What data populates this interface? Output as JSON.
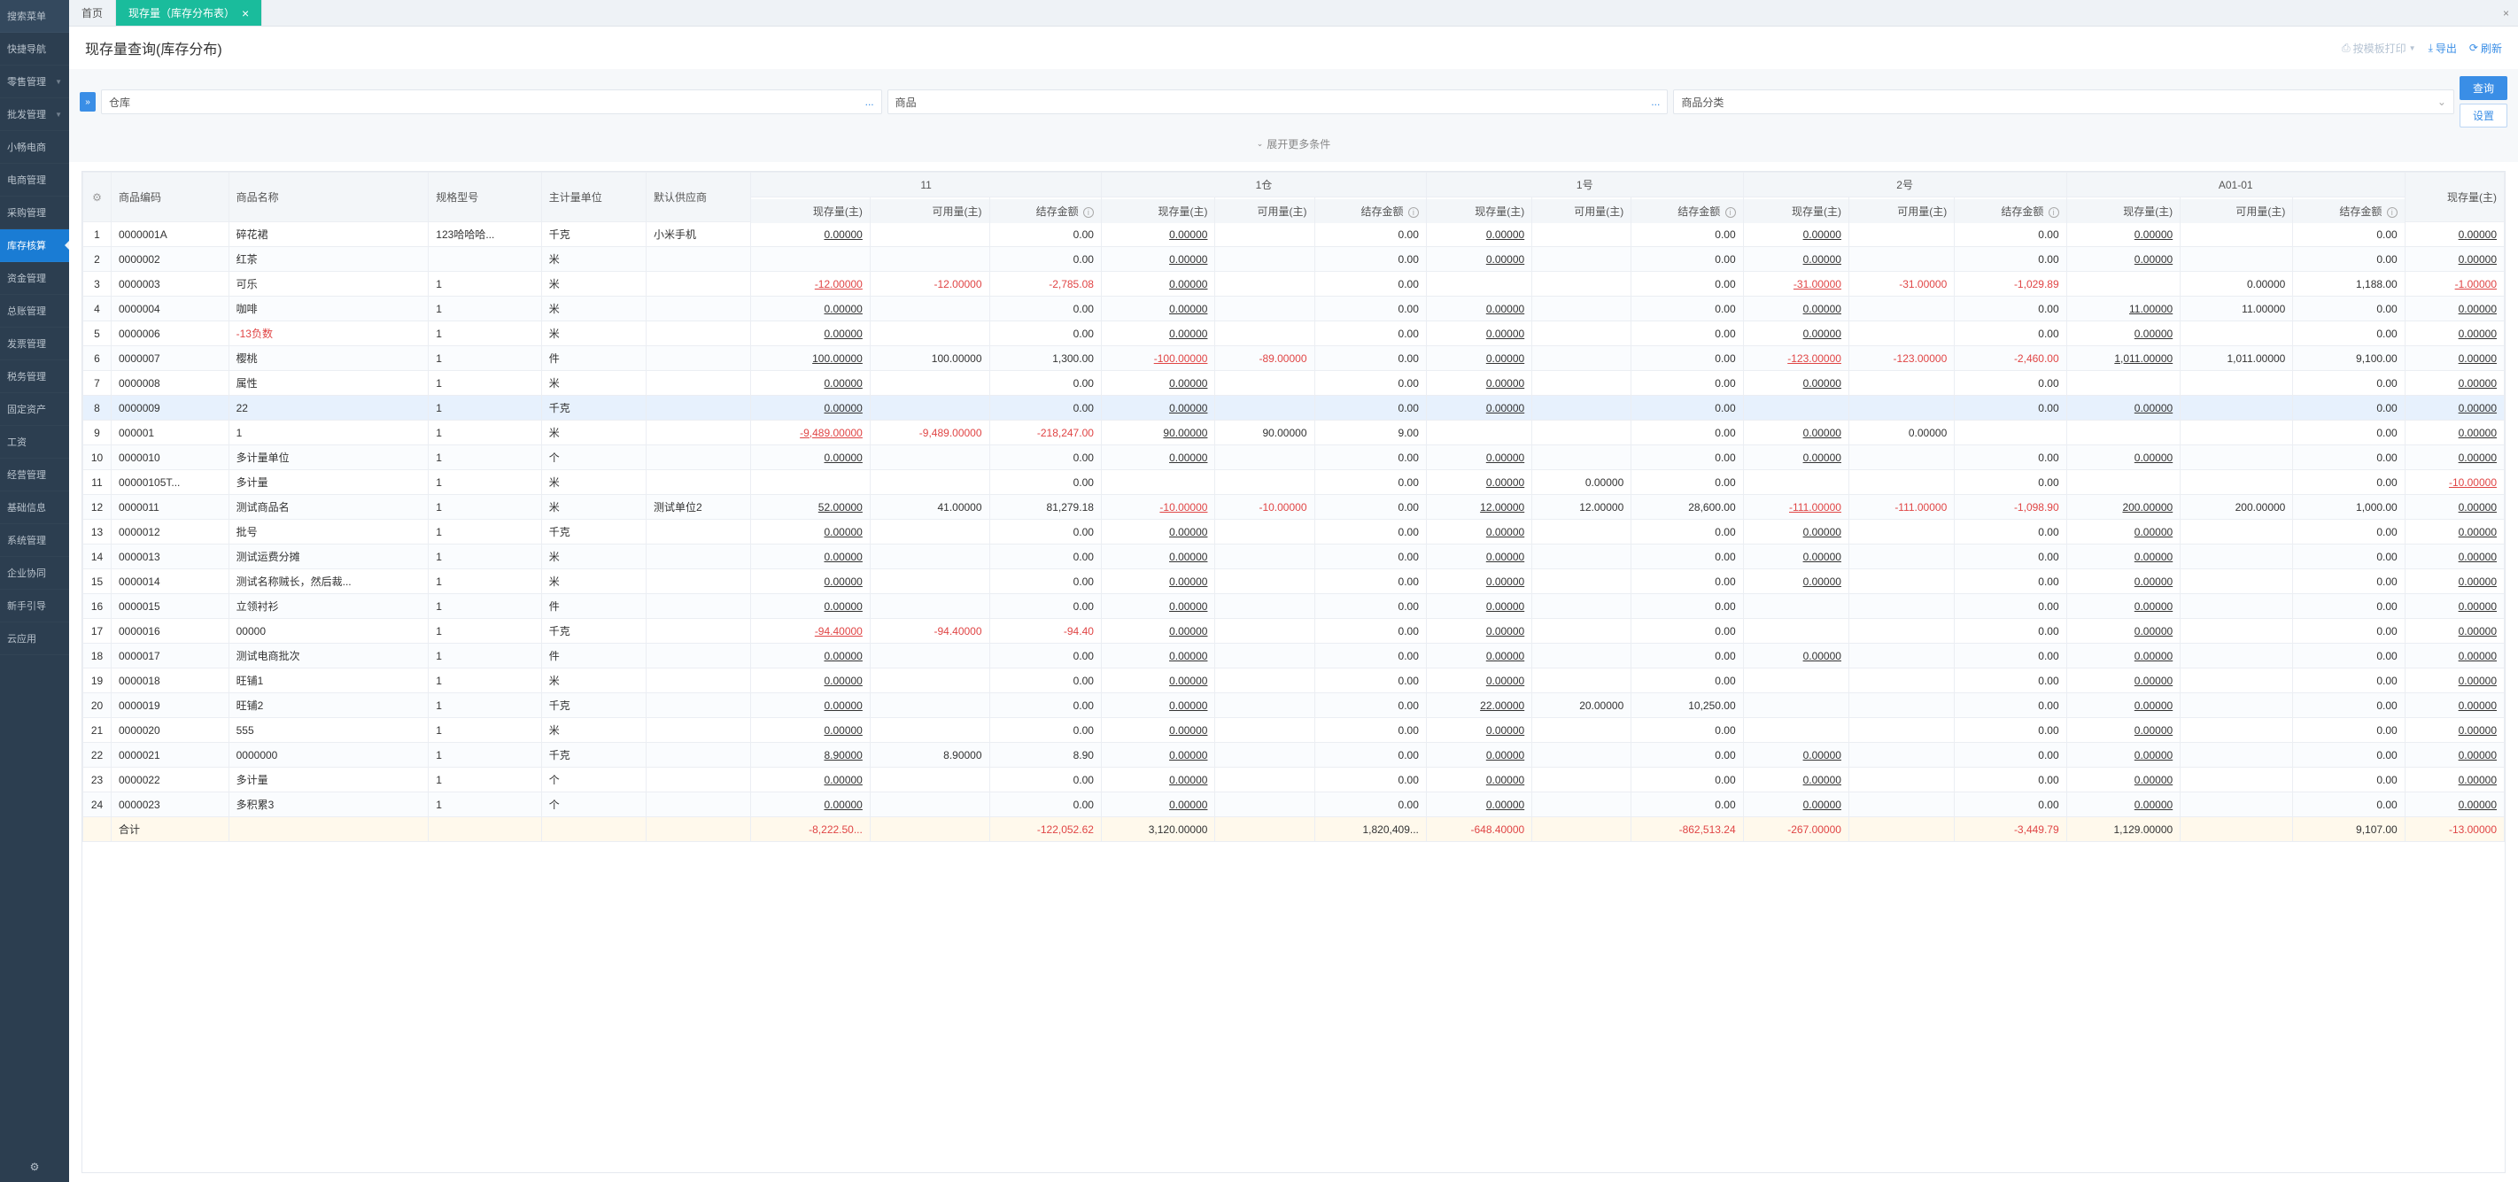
{
  "sidebar": {
    "items": [
      {
        "label": "搜索菜单",
        "chevron": false
      },
      {
        "label": "快捷导航",
        "chevron": false
      },
      {
        "label": "零售管理",
        "chevron": true
      },
      {
        "label": "批发管理",
        "chevron": true
      },
      {
        "label": "小畅电商",
        "chevron": false
      },
      {
        "label": "电商管理",
        "chevron": false
      },
      {
        "label": "采购管理",
        "chevron": false
      },
      {
        "label": "库存核算",
        "chevron": false,
        "active": true
      },
      {
        "label": "资金管理",
        "chevron": false
      },
      {
        "label": "总账管理",
        "chevron": false
      },
      {
        "label": "发票管理",
        "chevron": false
      },
      {
        "label": "税务管理",
        "chevron": false
      },
      {
        "label": "固定资产",
        "chevron": false
      },
      {
        "label": "工资",
        "chevron": false
      },
      {
        "label": "经营管理",
        "chevron": false
      },
      {
        "label": "基础信息",
        "chevron": false
      },
      {
        "label": "系统管理",
        "chevron": false
      },
      {
        "label": "企业协同",
        "chevron": false
      },
      {
        "label": "新手引导",
        "chevron": false
      },
      {
        "label": "云应用",
        "chevron": false
      }
    ]
  },
  "tabs": {
    "items": [
      {
        "label": "首页",
        "active": false,
        "closable": false
      },
      {
        "label": "现存量（库存分布表）",
        "active": true,
        "closable": true
      }
    ]
  },
  "page": {
    "title": "现存量查询(库存分布)",
    "actions": {
      "template_print": "按模板打印",
      "export": "导出",
      "refresh": "刷新"
    }
  },
  "filters": {
    "warehouse": {
      "label": "仓库",
      "more": "..."
    },
    "product": {
      "label": "商品",
      "more": "..."
    },
    "category": {
      "label": "商品分类"
    },
    "query_btn": "查询",
    "settings_btn": "设置",
    "expand": "展开更多条件"
  },
  "table": {
    "gear_tooltip": "设置",
    "base_cols": [
      "商品编码",
      "商品名称",
      "规格型号",
      "主计量单位",
      "默认供应商"
    ],
    "warehouse_groups": [
      "11",
      "1仓",
      "1号",
      "2号",
      "A01-01"
    ],
    "metric_cols": [
      "现存量(主)",
      "可用量(主)",
      "结存金额"
    ],
    "extra_col": "现存量(主)",
    "info_icon_title": "信息",
    "rows": [
      {
        "idx": 1,
        "code": "0000001A",
        "name": "碎花裙",
        "spec": "123哈哈哈...",
        "unit": "千克",
        "supplier": "小米手机",
        "vals": [
          "0.00000",
          "",
          "0.00",
          "0.00000",
          "",
          "0.00",
          "0.00000",
          "",
          "0.00",
          "0.00000",
          "",
          "0.00",
          "0.00000",
          "",
          "0.00",
          "0.00000"
        ]
      },
      {
        "idx": 2,
        "code": "0000002",
        "name": "红茶",
        "spec": "",
        "unit": "米",
        "supplier": "",
        "vals": [
          "",
          "",
          "0.00",
          "0.00000",
          "",
          "0.00",
          "0.00000",
          "",
          "0.00",
          "0.00000",
          "",
          "0.00",
          "0.00000",
          "",
          "0.00",
          "0.00000"
        ]
      },
      {
        "idx": 3,
        "code": "0000003",
        "name": "可乐",
        "spec": "1",
        "unit": "米",
        "supplier": "",
        "vals": [
          "-12.00000",
          "-12.00000",
          "-2,785.08",
          "0.00000",
          "",
          "0.00",
          "",
          "",
          "0.00",
          "-31.00000",
          "-31.00000",
          "-1,029.89",
          "",
          "0.00000",
          "1,188.00",
          "-1.00000"
        ]
      },
      {
        "idx": 4,
        "code": "0000004",
        "name": "咖啡",
        "spec": "1",
        "unit": "米",
        "supplier": "",
        "vals": [
          "0.00000",
          "",
          "0.00",
          "0.00000",
          "",
          "0.00",
          "0.00000",
          "",
          "0.00",
          "0.00000",
          "",
          "0.00",
          "11.00000",
          "11.00000",
          "0.00",
          "0.00000"
        ]
      },
      {
        "idx": 5,
        "code": "0000006",
        "name": "-13负数",
        "name_neg": true,
        "spec": "1",
        "unit": "米",
        "supplier": "",
        "vals": [
          "0.00000",
          "",
          "0.00",
          "0.00000",
          "",
          "0.00",
          "0.00000",
          "",
          "0.00",
          "0.00000",
          "",
          "0.00",
          "0.00000",
          "",
          "0.00",
          "0.00000"
        ]
      },
      {
        "idx": 6,
        "code": "0000007",
        "name": "樱桃",
        "spec": "1",
        "unit": "件",
        "supplier": "",
        "vals": [
          "100.00000",
          "100.00000",
          "1,300.00",
          "-100.00000",
          "-89.00000",
          "0.00",
          "0.00000",
          "",
          "0.00",
          "-123.00000",
          "-123.00000",
          "-2,460.00",
          "1,011.00000",
          "1,011.00000",
          "9,100.00",
          "0.00000"
        ]
      },
      {
        "idx": 7,
        "code": "0000008",
        "name": "属性",
        "spec": "1",
        "unit": "米",
        "supplier": "",
        "vals": [
          "0.00000",
          "",
          "0.00",
          "0.00000",
          "",
          "0.00",
          "0.00000",
          "",
          "0.00",
          "0.00000",
          "",
          "0.00",
          "",
          "",
          "0.00",
          "0.00000"
        ]
      },
      {
        "idx": 8,
        "code": "0000009",
        "name": "22",
        "spec": "1",
        "unit": "千克",
        "supplier": "",
        "highlight": true,
        "vals": [
          "0.00000",
          "",
          "0.00",
          "0.00000",
          "",
          "0.00",
          "0.00000",
          "",
          "0.00",
          "",
          "",
          "0.00",
          "0.00000",
          "",
          "0.00",
          "0.00000"
        ]
      },
      {
        "idx": 9,
        "code": "000001",
        "name": "1",
        "spec": "1",
        "unit": "米",
        "supplier": "",
        "vals": [
          "-9,489.00000",
          "-9,489.00000",
          "-218,247.00",
          "90.00000",
          "90.00000",
          "9.00",
          "",
          "",
          "0.00",
          "0.00000",
          "0.00000",
          "",
          "",
          "",
          "0.00",
          "0.00000"
        ]
      },
      {
        "idx": 10,
        "code": "0000010",
        "name": "多计量单位",
        "spec": "1",
        "unit": "个",
        "supplier": "",
        "vals": [
          "0.00000",
          "",
          "0.00",
          "0.00000",
          "",
          "0.00",
          "0.00000",
          "",
          "0.00",
          "0.00000",
          "",
          "0.00",
          "0.00000",
          "",
          "0.00",
          "0.00000"
        ]
      },
      {
        "idx": 11,
        "code": "00000105T...",
        "name": "多计量",
        "spec": "1",
        "unit": "米",
        "supplier": "",
        "vals": [
          "",
          "",
          "0.00",
          "",
          "",
          "0.00",
          "0.00000",
          "0.00000",
          "0.00",
          "",
          "",
          "0.00",
          "",
          "",
          "0.00",
          "-10.00000"
        ]
      },
      {
        "idx": 12,
        "code": "0000011",
        "name": "测试商品名",
        "spec": "1",
        "unit": "米",
        "supplier": "测试单位2",
        "vals": [
          "52.00000",
          "41.00000",
          "81,279.18",
          "-10.00000",
          "-10.00000",
          "0.00",
          "12.00000",
          "12.00000",
          "28,600.00",
          "-111.00000",
          "-111.00000",
          "-1,098.90",
          "200.00000",
          "200.00000",
          "1,000.00",
          "0.00000"
        ]
      },
      {
        "idx": 13,
        "code": "0000012",
        "name": "批号",
        "spec": "1",
        "unit": "千克",
        "supplier": "",
        "vals": [
          "0.00000",
          "",
          "0.00",
          "0.00000",
          "",
          "0.00",
          "0.00000",
          "",
          "0.00",
          "0.00000",
          "",
          "0.00",
          "0.00000",
          "",
          "0.00",
          "0.00000"
        ]
      },
      {
        "idx": 14,
        "code": "0000013",
        "name": "测试运费分摊",
        "spec": "1",
        "unit": "米",
        "supplier": "",
        "vals": [
          "0.00000",
          "",
          "0.00",
          "0.00000",
          "",
          "0.00",
          "0.00000",
          "",
          "0.00",
          "0.00000",
          "",
          "0.00",
          "0.00000",
          "",
          "0.00",
          "0.00000"
        ]
      },
      {
        "idx": 15,
        "code": "0000014",
        "name": "测试名称贼长，然后裁...",
        "spec": "1",
        "unit": "米",
        "supplier": "",
        "vals": [
          "0.00000",
          "",
          "0.00",
          "0.00000",
          "",
          "0.00",
          "0.00000",
          "",
          "0.00",
          "0.00000",
          "",
          "0.00",
          "0.00000",
          "",
          "0.00",
          "0.00000"
        ]
      },
      {
        "idx": 16,
        "code": "0000015",
        "name": "立领衬衫",
        "spec": "1",
        "unit": "件",
        "supplier": "",
        "vals": [
          "0.00000",
          "",
          "0.00",
          "0.00000",
          "",
          "0.00",
          "0.00000",
          "",
          "0.00",
          "",
          "",
          "0.00",
          "0.00000",
          "",
          "0.00",
          "0.00000"
        ]
      },
      {
        "idx": 17,
        "code": "0000016",
        "name": "00000",
        "spec": "1",
        "unit": "千克",
        "supplier": "",
        "vals": [
          "-94.40000",
          "-94.40000",
          "-94.40",
          "0.00000",
          "",
          "0.00",
          "0.00000",
          "",
          "0.00",
          "",
          "",
          "0.00",
          "0.00000",
          "",
          "0.00",
          "0.00000"
        ]
      },
      {
        "idx": 18,
        "code": "0000017",
        "name": "测试电商批次",
        "spec": "1",
        "unit": "件",
        "supplier": "",
        "vals": [
          "0.00000",
          "",
          "0.00",
          "0.00000",
          "",
          "0.00",
          "0.00000",
          "",
          "0.00",
          "0.00000",
          "",
          "0.00",
          "0.00000",
          "",
          "0.00",
          "0.00000"
        ]
      },
      {
        "idx": 19,
        "code": "0000018",
        "name": "旺铺1",
        "spec": "1",
        "unit": "米",
        "supplier": "",
        "vals": [
          "0.00000",
          "",
          "0.00",
          "0.00000",
          "",
          "0.00",
          "0.00000",
          "",
          "0.00",
          "",
          "",
          "0.00",
          "0.00000",
          "",
          "0.00",
          "0.00000"
        ]
      },
      {
        "idx": 20,
        "code": "0000019",
        "name": "旺铺2",
        "spec": "1",
        "unit": "千克",
        "supplier": "",
        "vals": [
          "0.00000",
          "",
          "0.00",
          "0.00000",
          "",
          "0.00",
          "22.00000",
          "20.00000",
          "10,250.00",
          "",
          "",
          "0.00",
          "0.00000",
          "",
          "0.00",
          "0.00000"
        ]
      },
      {
        "idx": 21,
        "code": "0000020",
        "name": "555",
        "spec": "1",
        "unit": "米",
        "supplier": "",
        "vals": [
          "0.00000",
          "",
          "0.00",
          "0.00000",
          "",
          "0.00",
          "0.00000",
          "",
          "0.00",
          "",
          "",
          "0.00",
          "0.00000",
          "",
          "0.00",
          "0.00000"
        ]
      },
      {
        "idx": 22,
        "code": "0000021",
        "name": "0000000",
        "spec": "1",
        "unit": "千克",
        "supplier": "",
        "vals": [
          "8.90000",
          "8.90000",
          "8.90",
          "0.00000",
          "",
          "0.00",
          "0.00000",
          "",
          "0.00",
          "0.00000",
          "",
          "0.00",
          "0.00000",
          "",
          "0.00",
          "0.00000"
        ]
      },
      {
        "idx": 23,
        "code": "0000022",
        "name": "多计量",
        "spec": "1",
        "unit": "个",
        "supplier": "",
        "vals": [
          "0.00000",
          "",
          "0.00",
          "0.00000",
          "",
          "0.00",
          "0.00000",
          "",
          "0.00",
          "0.00000",
          "",
          "0.00",
          "0.00000",
          "",
          "0.00",
          "0.00000"
        ]
      },
      {
        "idx": 24,
        "code": "0000023",
        "name": "多积累3",
        "spec": "1",
        "unit": "个",
        "supplier": "",
        "vals": [
          "0.00000",
          "",
          "0.00",
          "0.00000",
          "",
          "0.00",
          "0.00000",
          "",
          "0.00",
          "0.00000",
          "",
          "0.00",
          "0.00000",
          "",
          "0.00",
          "0.00000"
        ]
      }
    ],
    "total": {
      "label": "合计",
      "vals": [
        "-8,222.50...",
        "",
        "-122,052.62",
        "3,120.00000",
        "",
        "1,820,409...",
        "-648.40000",
        "",
        "-862,513.24",
        "-267.00000",
        "",
        "-3,449.79",
        "1,129.00000",
        "",
        "9,107.00",
        "-13.00000"
      ]
    }
  },
  "colors": {
    "sidebar_bg": "#2c3e50",
    "accent_green": "#1abc9c",
    "primary_blue": "#3a8ee6",
    "negative": "#e04545",
    "highlight_row": "#e7f1fd",
    "total_row_bg": "#fff9ec"
  }
}
